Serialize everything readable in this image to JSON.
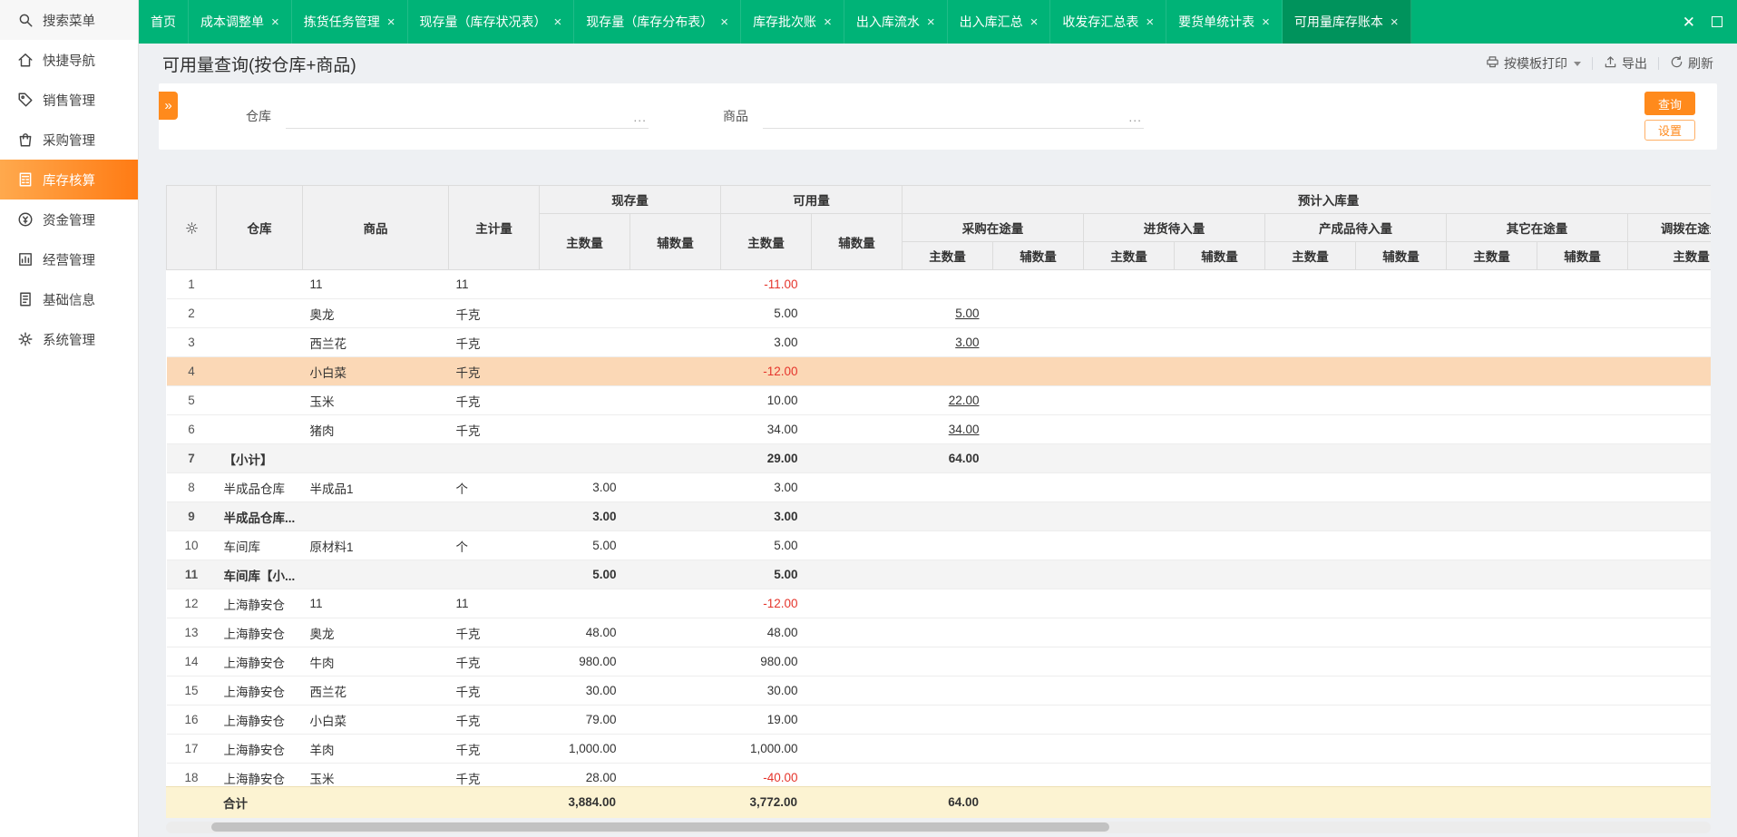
{
  "colors": {
    "brand_green": "#00b377",
    "active_tab_green": "#00935c",
    "accent_orange": "#ff8a1c",
    "negative_red": "#e5352c",
    "highlight_row": "#fbd8b6",
    "total_row": "#fcf3d2"
  },
  "tabbar": {
    "tabs": [
      {
        "label": "首页",
        "closable": false,
        "active": false
      },
      {
        "label": "成本调整单",
        "closable": true,
        "active": false
      },
      {
        "label": "拣货任务管理",
        "closable": true,
        "active": false
      },
      {
        "label": "现存量（库存状况表）",
        "closable": true,
        "active": false
      },
      {
        "label": "现存量（库存分布表）",
        "closable": true,
        "active": false
      },
      {
        "label": "库存批次账",
        "closable": true,
        "active": false
      },
      {
        "label": "出入库流水",
        "closable": true,
        "active": false
      },
      {
        "label": "出入库汇总",
        "closable": true,
        "active": false
      },
      {
        "label": "收发存汇总表",
        "closable": true,
        "active": false
      },
      {
        "label": "要货单统计表",
        "closable": true,
        "active": false
      },
      {
        "label": "可用量库存账本",
        "closable": true,
        "active": true
      }
    ]
  },
  "sidebar": {
    "items": [
      {
        "label": "搜索菜单",
        "icon": "search-icon",
        "active": false
      },
      {
        "label": "快捷导航",
        "icon": "home-icon",
        "active": false
      },
      {
        "label": "销售管理",
        "icon": "sales-tag-icon",
        "active": false
      },
      {
        "label": "采购管理",
        "icon": "purchase-bag-icon",
        "active": false
      },
      {
        "label": "库存核算",
        "icon": "inventory-ledger-icon",
        "active": true
      },
      {
        "label": "资金管理",
        "icon": "funds-coin-icon",
        "active": false
      },
      {
        "label": "经营管理",
        "icon": "operations-chart-icon",
        "active": false
      },
      {
        "label": "基础信息",
        "icon": "base-info-doc-icon",
        "active": false
      },
      {
        "label": "系统管理",
        "icon": "system-gear-icon",
        "active": false
      }
    ]
  },
  "page": {
    "title": "可用量查询(按仓库+商品)",
    "actions": {
      "print_label": "按模板打印",
      "print_icon": "printer-icon",
      "export_label": "导出",
      "export_icon": "export-icon",
      "refresh_label": "刷新",
      "refresh_icon": "refresh-icon"
    }
  },
  "filters": {
    "expand_icon_glyph": "»",
    "warehouse_label": "仓库",
    "warehouse_value": "",
    "product_label": "商品",
    "product_value": "",
    "ellipsis_button": "...",
    "query_button": "查询",
    "settings_button": "设置"
  },
  "table": {
    "header": {
      "settings_icon": "gear-icon",
      "warehouse": "仓库",
      "product": "商品",
      "unit": "主计量",
      "onhand": "现存量",
      "available": "可用量",
      "expected_in": "预计入库量",
      "po_transit": "采购在途量",
      "incoming_wait": "进货待入量",
      "finished_wait": "产成品待入量",
      "other_transit": "其它在途量",
      "transfer_transit": "调拨在途量",
      "main_qty": "主数量",
      "aux_qty": "辅数量"
    },
    "rows": [
      {
        "num": "1",
        "type": "normal",
        "underline": [],
        "cells": [
          "",
          "11",
          "11",
          "",
          "",
          "-11.00",
          "",
          "",
          "",
          "",
          "",
          "",
          "",
          "",
          "",
          ""
        ]
      },
      {
        "num": "2",
        "type": "normal",
        "underline": [
          7
        ],
        "cells": [
          "",
          "奥龙",
          "千克",
          "",
          "",
          "5.00",
          "",
          "5.00",
          "",
          "",
          "",
          "",
          "",
          "",
          "",
          ""
        ]
      },
      {
        "num": "3",
        "type": "normal",
        "underline": [
          7
        ],
        "cells": [
          "",
          "西兰花",
          "千克",
          "",
          "",
          "3.00",
          "",
          "3.00",
          "",
          "",
          "",
          "",
          "",
          "",
          "",
          ""
        ]
      },
      {
        "num": "4",
        "type": "highlight",
        "underline": [],
        "cells": [
          "",
          "小白菜",
          "千克",
          "",
          "",
          "-12.00",
          "",
          "",
          "",
          "",
          "",
          "",
          "",
          "",
          "",
          ""
        ]
      },
      {
        "num": "5",
        "type": "normal",
        "underline": [
          7
        ],
        "cells": [
          "",
          "玉米",
          "千克",
          "",
          "",
          "10.00",
          "",
          "22.00",
          "",
          "",
          "",
          "",
          "",
          "",
          "",
          ""
        ]
      },
      {
        "num": "6",
        "type": "normal",
        "underline": [
          7
        ],
        "cells": [
          "",
          "猪肉",
          "千克",
          "",
          "",
          "34.00",
          "",
          "34.00",
          "",
          "",
          "",
          "",
          "",
          "",
          "",
          ""
        ]
      },
      {
        "num": "7",
        "type": "subtotal",
        "underline": [],
        "cells": [
          "【小计】",
          "",
          "",
          "",
          "",
          "29.00",
          "",
          "64.00",
          "",
          "",
          "",
          "",
          "",
          "",
          "",
          ""
        ]
      },
      {
        "num": "8",
        "type": "normal",
        "underline": [],
        "cells": [
          "半成品仓库",
          "半成品1",
          "个",
          "3.00",
          "",
          "3.00",
          "",
          "",
          "",
          "",
          "",
          "",
          "",
          "",
          "",
          ""
        ]
      },
      {
        "num": "9",
        "type": "subtotal",
        "underline": [],
        "cells": [
          "半成品仓库...",
          "",
          "",
          "3.00",
          "",
          "3.00",
          "",
          "",
          "",
          "",
          "",
          "",
          "",
          "",
          "",
          ""
        ]
      },
      {
        "num": "10",
        "type": "normal",
        "underline": [],
        "cells": [
          "车间库",
          "原材料1",
          "个",
          "5.00",
          "",
          "5.00",
          "",
          "",
          "",
          "",
          "",
          "",
          "",
          "",
          "",
          ""
        ]
      },
      {
        "num": "11",
        "type": "subtotal",
        "underline": [],
        "cells": [
          "车间库【小...",
          "",
          "",
          "5.00",
          "",
          "5.00",
          "",
          "",
          "",
          "",
          "",
          "",
          "",
          "",
          "",
          ""
        ]
      },
      {
        "num": "12",
        "type": "normal",
        "underline": [],
        "cells": [
          "上海静安仓",
          "11",
          "11",
          "",
          "",
          "-12.00",
          "",
          "",
          "",
          "",
          "",
          "",
          "",
          "",
          "",
          ""
        ]
      },
      {
        "num": "13",
        "type": "normal",
        "underline": [],
        "cells": [
          "上海静安仓",
          "奥龙",
          "千克",
          "48.00",
          "",
          "48.00",
          "",
          "",
          "",
          "",
          "",
          "",
          "",
          "",
          "",
          ""
        ]
      },
      {
        "num": "14",
        "type": "normal",
        "underline": [],
        "cells": [
          "上海静安仓",
          "牛肉",
          "千克",
          "980.00",
          "",
          "980.00",
          "",
          "",
          "",
          "",
          "",
          "",
          "",
          "",
          "",
          ""
        ]
      },
      {
        "num": "15",
        "type": "normal",
        "underline": [],
        "cells": [
          "上海静安仓",
          "西兰花",
          "千克",
          "30.00",
          "",
          "30.00",
          "",
          "",
          "",
          "",
          "",
          "",
          "",
          "",
          "",
          ""
        ]
      },
      {
        "num": "16",
        "type": "normal",
        "underline": [],
        "cells": [
          "上海静安仓",
          "小白菜",
          "千克",
          "79.00",
          "",
          "19.00",
          "",
          "",
          "",
          "",
          "",
          "",
          "",
          "",
          "",
          ""
        ]
      },
      {
        "num": "17",
        "type": "normal",
        "underline": [],
        "cells": [
          "上海静安仓",
          "羊肉",
          "千克",
          "1,000.00",
          "",
          "1,000.00",
          "",
          "",
          "",
          "",
          "",
          "",
          "",
          "",
          "",
          ""
        ]
      },
      {
        "num": "18",
        "type": "normal",
        "underline": [],
        "cells": [
          "上海静安仓",
          "玉米",
          "千克",
          "28.00",
          "",
          "-40.00",
          "",
          "",
          "",
          "",
          "",
          "",
          "",
          "",
          "",
          ""
        ]
      }
    ],
    "footer": {
      "cells": [
        "合计",
        "",
        "",
        "3,884.00",
        "",
        "3,772.00",
        "",
        "64.00",
        "",
        "",
        "",
        "",
        "",
        "",
        "",
        ""
      ]
    }
  }
}
